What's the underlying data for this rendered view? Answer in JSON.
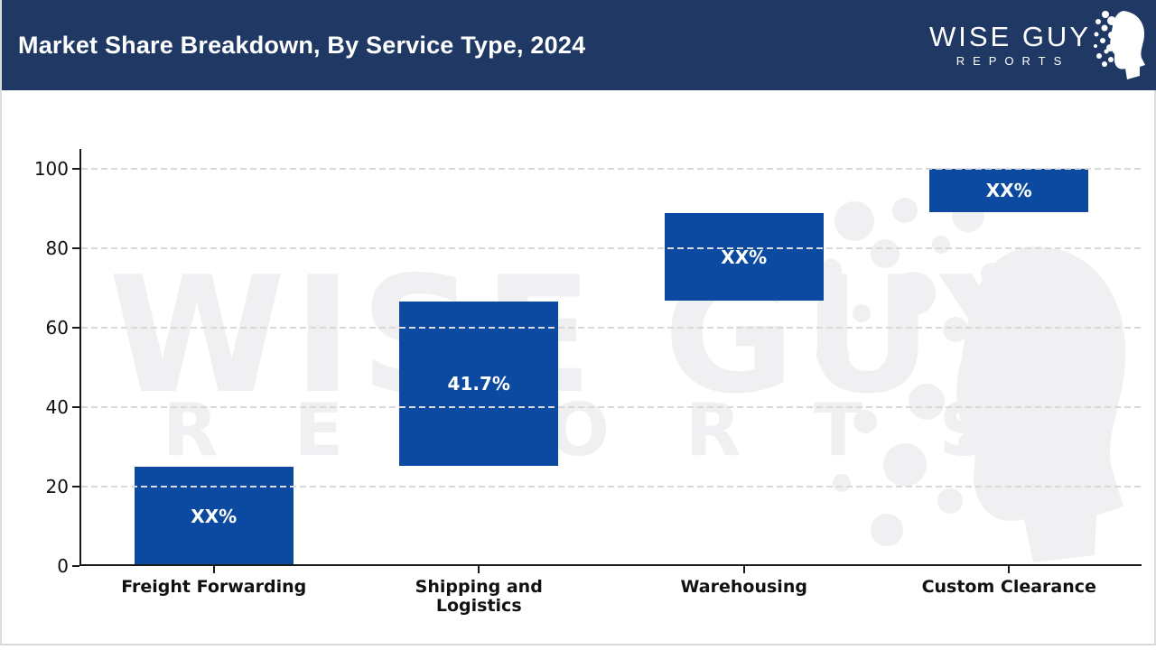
{
  "header": {
    "title": "Market Share Breakdown, By Service Type, 2024",
    "bg_color": "#1f3864",
    "logo": {
      "line1": "WISE GUY",
      "line2": "REPORTS"
    }
  },
  "watermark": {
    "line1": "WISE GUY",
    "line2": "REPORTS"
  },
  "chart_data": {
    "type": "bar",
    "subtype": "waterfall",
    "title": "Market Share Breakdown, By Service Type, 2024",
    "categories": [
      "Freight Forwarding",
      "Shipping and\nLogistics",
      "Warehousing",
      "Custom Clearance"
    ],
    "segments": [
      {
        "start": 0,
        "end": 25,
        "value": 25,
        "label": "XX%"
      },
      {
        "start": 25,
        "end": 66.7,
        "value": 41.7,
        "label": "41.7%"
      },
      {
        "start": 66.7,
        "end": 88.9,
        "value": 22.2,
        "label": "XX%"
      },
      {
        "start": 88.9,
        "end": 100,
        "value": 11.1,
        "label": "XX%"
      }
    ],
    "yticks": [
      0,
      20,
      40,
      60,
      80,
      100
    ],
    "ylim": [
      0,
      100
    ],
    "xlabel": "",
    "ylabel": "",
    "grid": "horizontal-dashed",
    "legend": "none",
    "bar_color": "#0c49a0",
    "bar_label_color": "#ffffff",
    "grid_color": "#d9d9d9",
    "axis_color": "#1a1a1a"
  }
}
